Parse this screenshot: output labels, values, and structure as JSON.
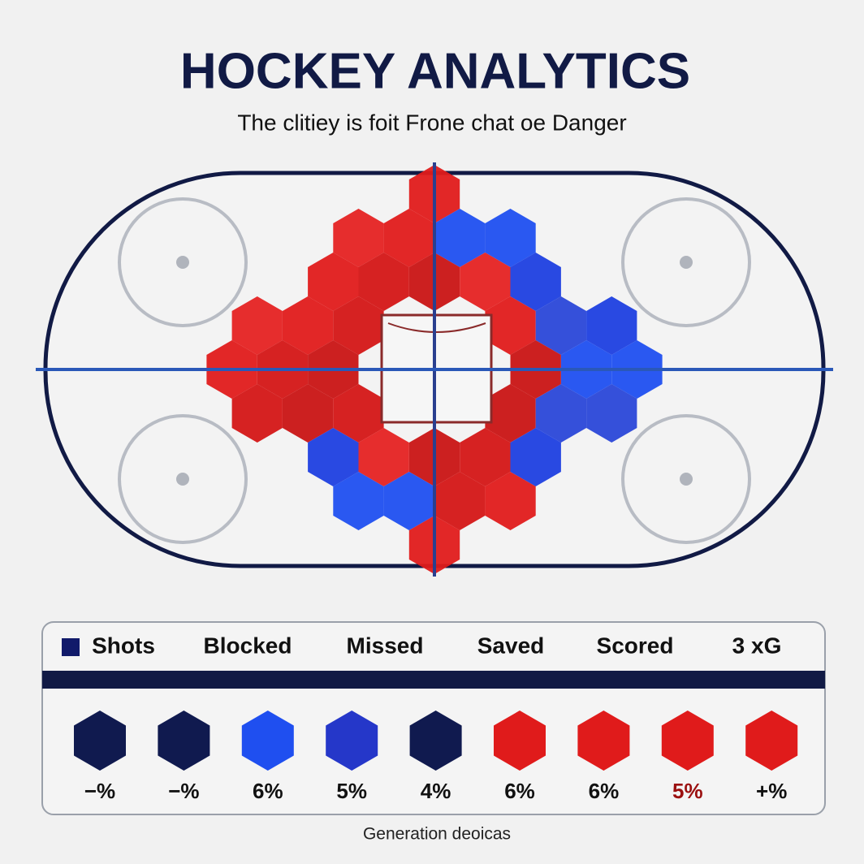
{
  "header": {
    "title": "HOCKEY ANALYTICS",
    "subtitle": "The clitiey is foit Frone chat oe Danger"
  },
  "legend": {
    "headers": [
      "Shots",
      "Blocked",
      "Missed",
      "Saved",
      "Scored",
      "3 xG"
    ],
    "items": [
      {
        "label": "−%",
        "color": "#101a4f"
      },
      {
        "label": "−%",
        "color": "#101a4f"
      },
      {
        "label": "6%",
        "color": "#1f4ff0"
      },
      {
        "label": "5%",
        "color": "#2537c9"
      },
      {
        "label": "4%",
        "color": "#101a4f"
      },
      {
        "label": "6%",
        "color": "#e01b1b"
      },
      {
        "label": "6%",
        "color": "#e01b1b"
      },
      {
        "label": "5%",
        "color": "#e01b1b",
        "label_color": "#9b1010"
      },
      {
        "label": "+%",
        "color": "#e01b1b"
      }
    ]
  },
  "footer": "Generation deoicas"
}
